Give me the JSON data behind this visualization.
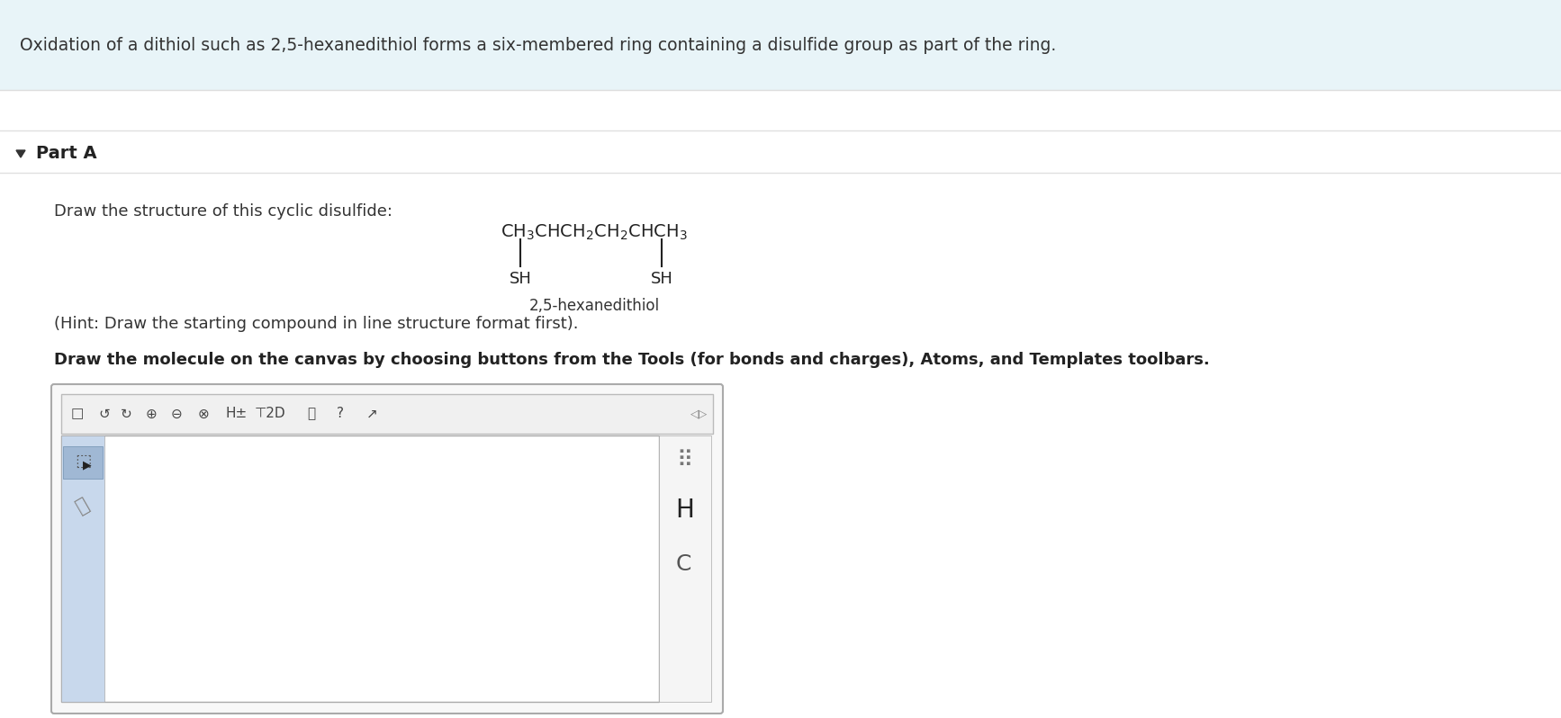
{
  "bg_color": "#ffffff",
  "header_bg_color": "#e8f4f8",
  "header_text": "Oxidation of a dithiol such as 2,5-hexanedithiol forms a six-membered ring containing a disulfide group as part of the ring.",
  "header_text_color": "#333333",
  "header_font_size": 13.5,
  "part_a_text": "Part A",
  "part_a_font_size": 14,
  "draw_instruction": "Draw the structure of this cyclic disulfide:",
  "draw_instruction_font_size": 13,
  "chem_formula_main": "CH₃CHCH₂CH₂CHCH₃",
  "chem_sh_left": "SH",
  "chem_sh_right": "SH",
  "chem_label": "2,5-hexanedithiol",
  "chem_font_size": 13,
  "hint_text": "(Hint: Draw the starting compound in line structure format first).",
  "hint_font_size": 13,
  "bold_instruction": "Draw the molecule on the canvas by choosing buttons from the Tools (for bonds and charges), Atoms, and Templates toolbars.",
  "bold_font_size": 13,
  "divider_color": "#cccccc",
  "canvas_border_color": "#aaaaaa",
  "canvas_bg": "#ffffff",
  "toolbar_bg": "#f5f5f5",
  "sidebar_bg": "#c8d8e8",
  "right_sidebar_bg": "#f0f0f0"
}
